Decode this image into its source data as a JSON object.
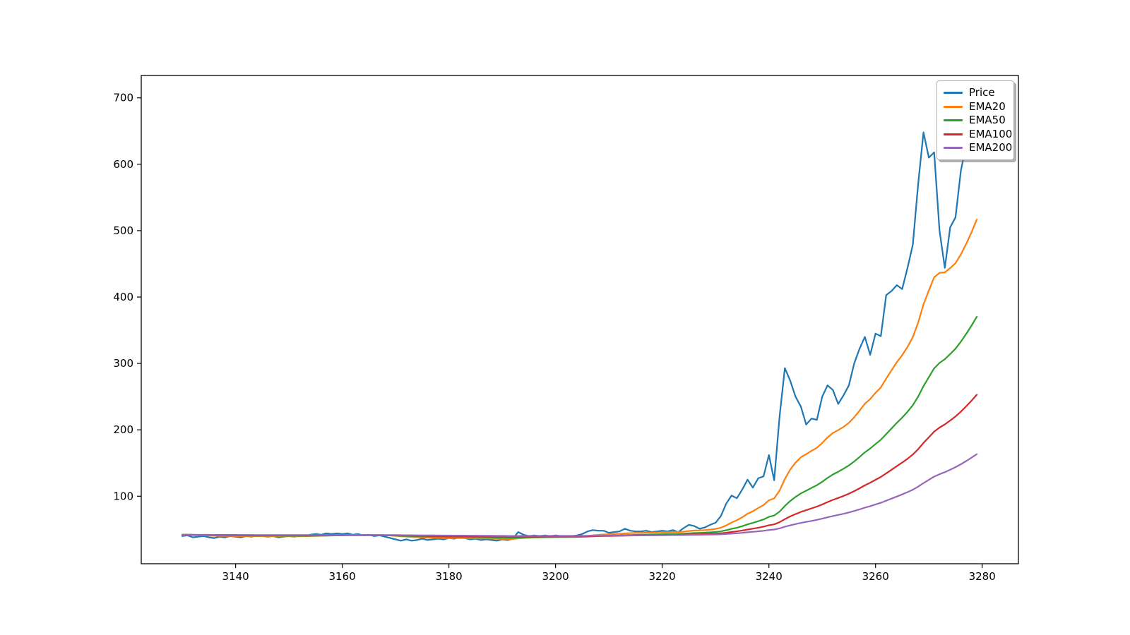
{
  "chart_data": {
    "type": "line",
    "title": "",
    "xlabel": "",
    "ylabel": "",
    "grid": false,
    "legend_position": "upper right",
    "x_start": 3130,
    "x_step": 1,
    "xlim": [
      3122.3,
      3286.8
    ],
    "ylim": [
      -1.7,
      733.7
    ],
    "xticks": [
      3140,
      3160,
      3180,
      3200,
      3220,
      3240,
      3260,
      3280
    ],
    "yticks": [
      100,
      200,
      300,
      400,
      500,
      600,
      700
    ],
    "series": [
      {
        "name": "Price",
        "color": "#1f77b4",
        "values": [
          40,
          41,
          38,
          39,
          40,
          38,
          37,
          39,
          38,
          40,
          39,
          38,
          40,
          39,
          41,
          40,
          39,
          40,
          38,
          39,
          40,
          39,
          41,
          40,
          42,
          43,
          42,
          44,
          43,
          44,
          43,
          44,
          42,
          43,
          41,
          42,
          40,
          41,
          39,
          37,
          35,
          33,
          35,
          33,
          34,
          36,
          34,
          35,
          36,
          35,
          37,
          36,
          38,
          37,
          35,
          36,
          34,
          35,
          34,
          33,
          35,
          34,
          36,
          46,
          42,
          40,
          41,
          40,
          41,
          40,
          41,
          40,
          40,
          40,
          41,
          43,
          47,
          49,
          48,
          48,
          45,
          46,
          47,
          51,
          48,
          47,
          47,
          48,
          46,
          47,
          48,
          47,
          49,
          46,
          52,
          57,
          55,
          51,
          53,
          57,
          60,
          70,
          89,
          101,
          97,
          110,
          125,
          113,
          127,
          130,
          162,
          124,
          220,
          293,
          274,
          250,
          235,
          208,
          217,
          215,
          250,
          267,
          260,
          239,
          252,
          267,
          300,
          322,
          340,
          313,
          345,
          341,
          403,
          409,
          418,
          412,
          444,
          479,
          571,
          648,
          610,
          618,
          500,
          444,
          505,
          520,
          590,
          630,
          665,
          700
        ]
      },
      {
        "name": "EMA20",
        "color": "#ff7f0e",
        "derive": {
          "type": "ema",
          "period": 20,
          "source": "Price",
          "seed": 42
        }
      },
      {
        "name": "EMA50",
        "color": "#2ca02c",
        "derive": {
          "type": "ema",
          "period": 50,
          "source": "Price",
          "seed": 42
        }
      },
      {
        "name": "EMA100",
        "color": "#d62728",
        "derive": {
          "type": "ema",
          "period": 100,
          "source": "Price",
          "seed": 42
        }
      },
      {
        "name": "EMA200",
        "color": "#9467bd",
        "derive": {
          "type": "ema",
          "period": 200,
          "source": "Price",
          "seed": 42
        }
      }
    ]
  },
  "legend": {
    "entries": [
      "Price",
      "EMA20",
      "EMA50",
      "EMA100",
      "EMA200"
    ]
  },
  "colors": {
    "background": "#ffffff",
    "axis": "#000000",
    "tick_label": "#000000",
    "legend_border": "#b0b0b0"
  }
}
